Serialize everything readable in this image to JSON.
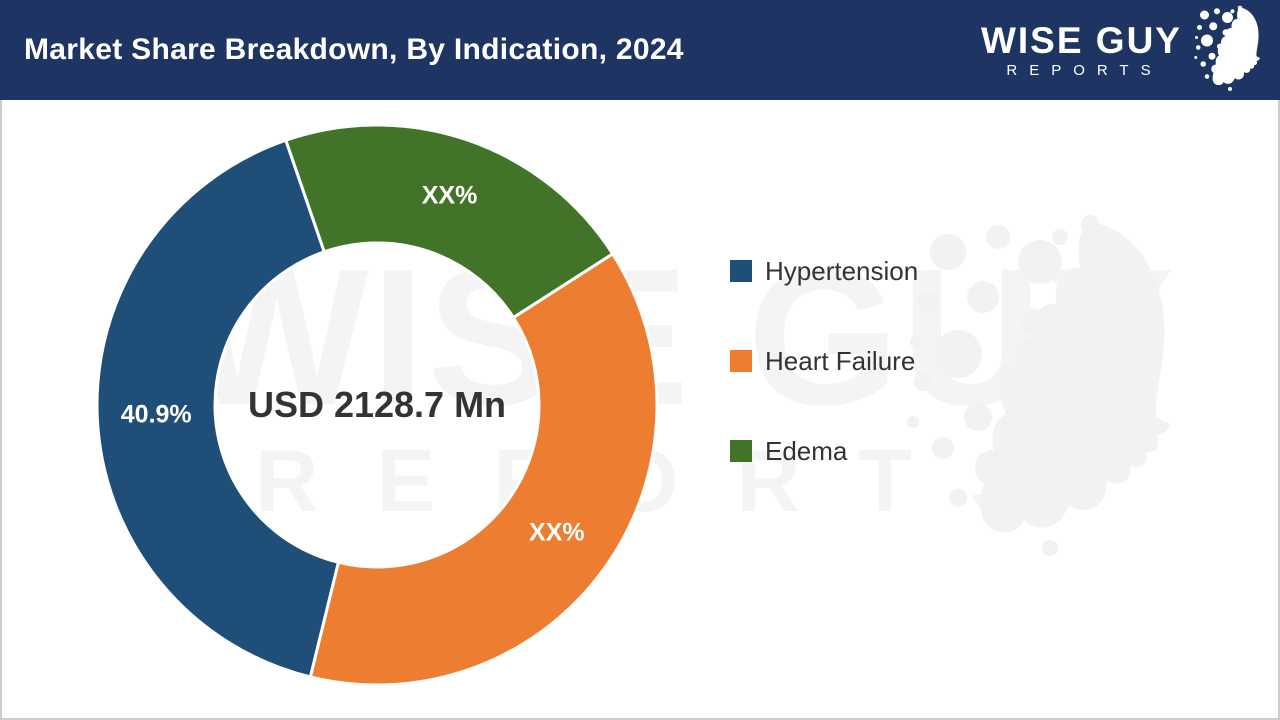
{
  "header": {
    "title": "Market Share Breakdown, By Indication, 2024",
    "logo": {
      "name_line": "WISE GUY",
      "sub_line": "REPORTS"
    }
  },
  "watermark": {
    "text_main": "WISE GUY",
    "text_sub": "REPORTS"
  },
  "chart_data": {
    "type": "pie",
    "subtype": "donut",
    "title": "Market Share Breakdown, By Indication, 2024",
    "center_label": "USD 2128.7 Mn",
    "legend_position": "right",
    "start_angle_deg": 109,
    "direction": "counterclockwise",
    "donut_hole_ratio": 0.58,
    "slice_gap_color": "#ffffff",
    "series": [
      {
        "name": "Hypertension",
        "value_pct": 40.9,
        "displayed_label": "40.9%",
        "color": "#1f4e78"
      },
      {
        "name": "Heart Failure",
        "value_pct": 37.9,
        "displayed_label": "XX%",
        "color": "#ed7d31"
      },
      {
        "name": "Edema",
        "value_pct": 21.2,
        "displayed_label": "XX%",
        "color": "#417428"
      }
    ]
  },
  "colors": {
    "header_bg": "#1e3563",
    "title_text": "#ffffff",
    "page_bg": "#ffffff",
    "page_border": "#cccccc",
    "center_text": "#333333",
    "legend_text": "#333333",
    "slice_label_text": "#ffffff",
    "watermark": "#f4f4f4"
  }
}
